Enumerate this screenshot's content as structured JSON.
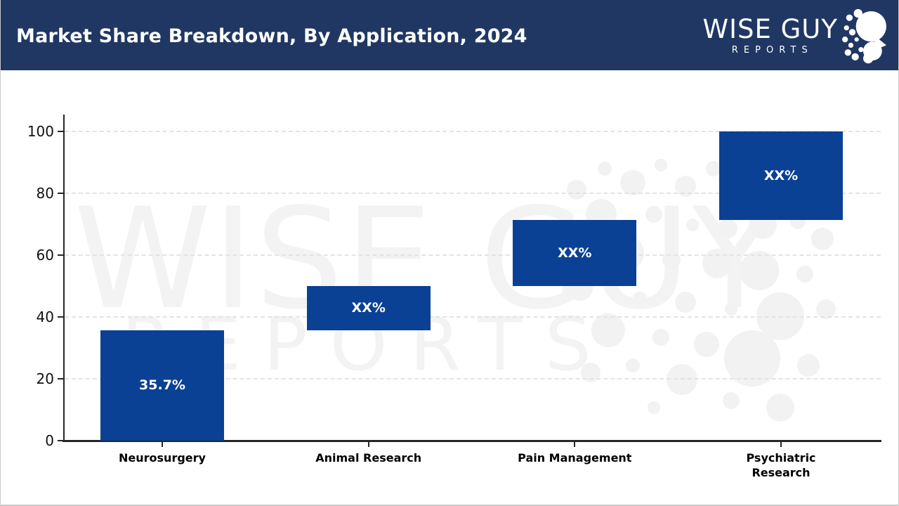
{
  "header": {
    "title": "Market Share Breakdown, By Application, 2024",
    "background_color": "#203763",
    "logo": {
      "name": "WISE GUY",
      "sub": "REPORTS",
      "head_icon": "dotted-face-profile"
    }
  },
  "watermark": {
    "text": "WISE GUY",
    "sub": "REPORTS",
    "color": "#f3f3f3"
  },
  "chart_data": {
    "type": "bar",
    "subtype": "waterfall",
    "title": "Market Share Breakdown, By Application, 2024",
    "categories": [
      "Neurosurgery",
      "Animal Research",
      "Pain Management",
      "Psychiatric Research"
    ],
    "segments": [
      {
        "category": "Neurosurgery",
        "start": 0,
        "end": 35.7,
        "label": "35.7%"
      },
      {
        "category": "Animal Research",
        "start": 35.7,
        "end": 50.0,
        "label": "XX%"
      },
      {
        "category": "Pain Management",
        "start": 50.0,
        "end": 71.4,
        "label": "XX%"
      },
      {
        "category": "Psychiatric Research",
        "start": 71.4,
        "end": 100.0,
        "label": "XX%"
      }
    ],
    "values": [
      35.7,
      14.3,
      21.4,
      28.6
    ],
    "bar_labels": [
      "35.7%",
      "XX%",
      "XX%",
      "XX%"
    ],
    "xlabel": "",
    "ylabel": "",
    "ylim": [
      0,
      100
    ],
    "yticks": [
      0,
      20,
      40,
      60,
      80,
      100
    ],
    "grid": "horizontal-dashed",
    "legend": "none",
    "bar_color": "#0b4194",
    "bar_label_color": "#ffffff"
  }
}
